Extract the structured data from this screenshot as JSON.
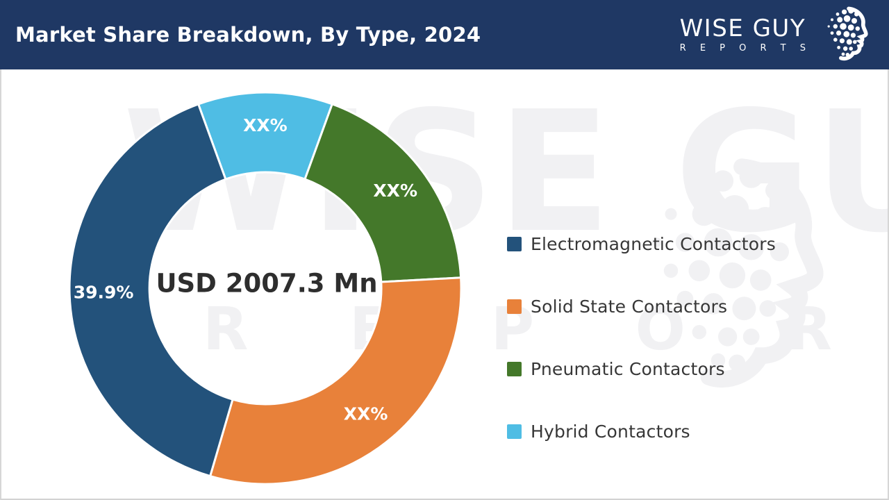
{
  "header": {
    "title": "Market Share Breakdown, By Type, 2024",
    "bg_color": "#1F3864",
    "logo": {
      "line1": "WISE GUY",
      "line2": "R E P O R T S"
    }
  },
  "watermark": {
    "line1": "WISE GUY",
    "line2": "R E P O R T S"
  },
  "chart_data": {
    "type": "pie",
    "subtype": "doughnut",
    "title": "Market Share Breakdown, By Type, 2024",
    "center_label": "USD 2007.3 Mn",
    "legend_position": "right",
    "start_angle_deg": -20,
    "draw_sequence": [
      3,
      2,
      1,
      0
    ],
    "segments": [
      {
        "label": "Electromagnetic Contactors",
        "value_pct": 39.9,
        "display_label": "39.9%",
        "color": "#23527B"
      },
      {
        "label": "Solid State Contactors",
        "value_pct": 30.4,
        "display_label": "XX%",
        "color": "#E8813A"
      },
      {
        "label": "Pneumatic Contactors",
        "value_pct": 18.6,
        "display_label": "XX%",
        "color": "#44782A"
      },
      {
        "label": "Hybrid Contactors",
        "value_pct": 11.1,
        "display_label": "XX%",
        "color": "#4FBDE4"
      }
    ]
  }
}
